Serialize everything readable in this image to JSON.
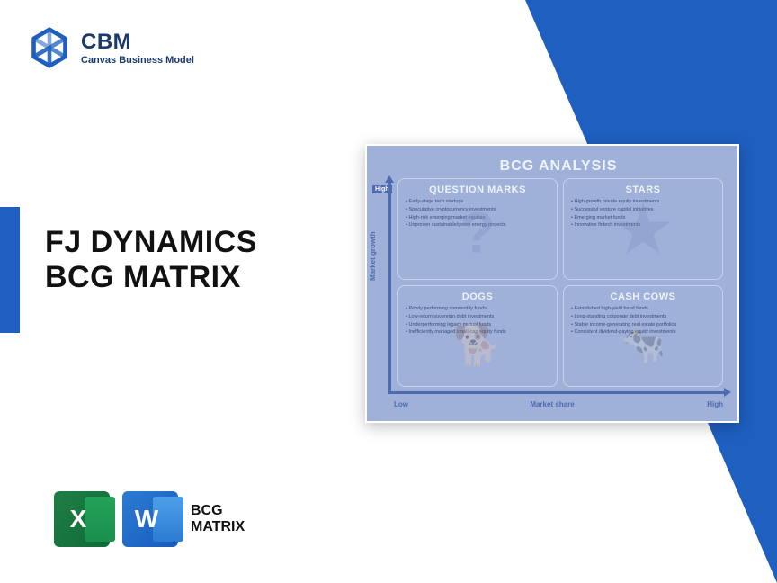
{
  "brand": {
    "name": "CBM",
    "tagline": "Canvas Business Model",
    "logo_color": "#1f5fbf"
  },
  "title": {
    "line1": "FJ DYNAMICS",
    "line2": "BCG MATRIX"
  },
  "accent_color": "#1f5fbf",
  "bottom": {
    "excel_letter": "X",
    "word_letter": "W",
    "label_line1": "BCG",
    "label_line2": "MATRIX"
  },
  "bcg": {
    "card_bg": "#9fb1d8",
    "axis_color": "#4d6bb0",
    "title": "BCG ANALYSIS",
    "y_axis": "Market growth",
    "x_axis": "Market share",
    "y_high": "High",
    "low": "Low",
    "x_high": "High",
    "quadrants": {
      "question_marks": {
        "title": "QUESTION MARKS",
        "items": [
          "Early-stage tech startups",
          "Speculative cryptocurrency investments",
          "High-risk emerging market equities",
          "Unproven sustainable/green energy projects"
        ]
      },
      "stars": {
        "title": "STARS",
        "items": [
          "High-growth private equity investments",
          "Successful venture capital initiatives",
          "Emerging market funds",
          "Innovative fintech investments"
        ]
      },
      "dogs": {
        "title": "DOGS",
        "items": [
          "Poorly performing commodity funds",
          "Low-return sovereign debt investments",
          "Underperforming legacy mutual funds",
          "Inefficiently managed small-cap equity funds"
        ]
      },
      "cash_cows": {
        "title": "CASH COWS",
        "items": [
          "Established high-yield bond funds",
          "Long-standing corporate debt investments",
          "Stable income-generating real estate portfolios",
          "Consistent dividend-paying equity investments"
        ]
      }
    }
  }
}
